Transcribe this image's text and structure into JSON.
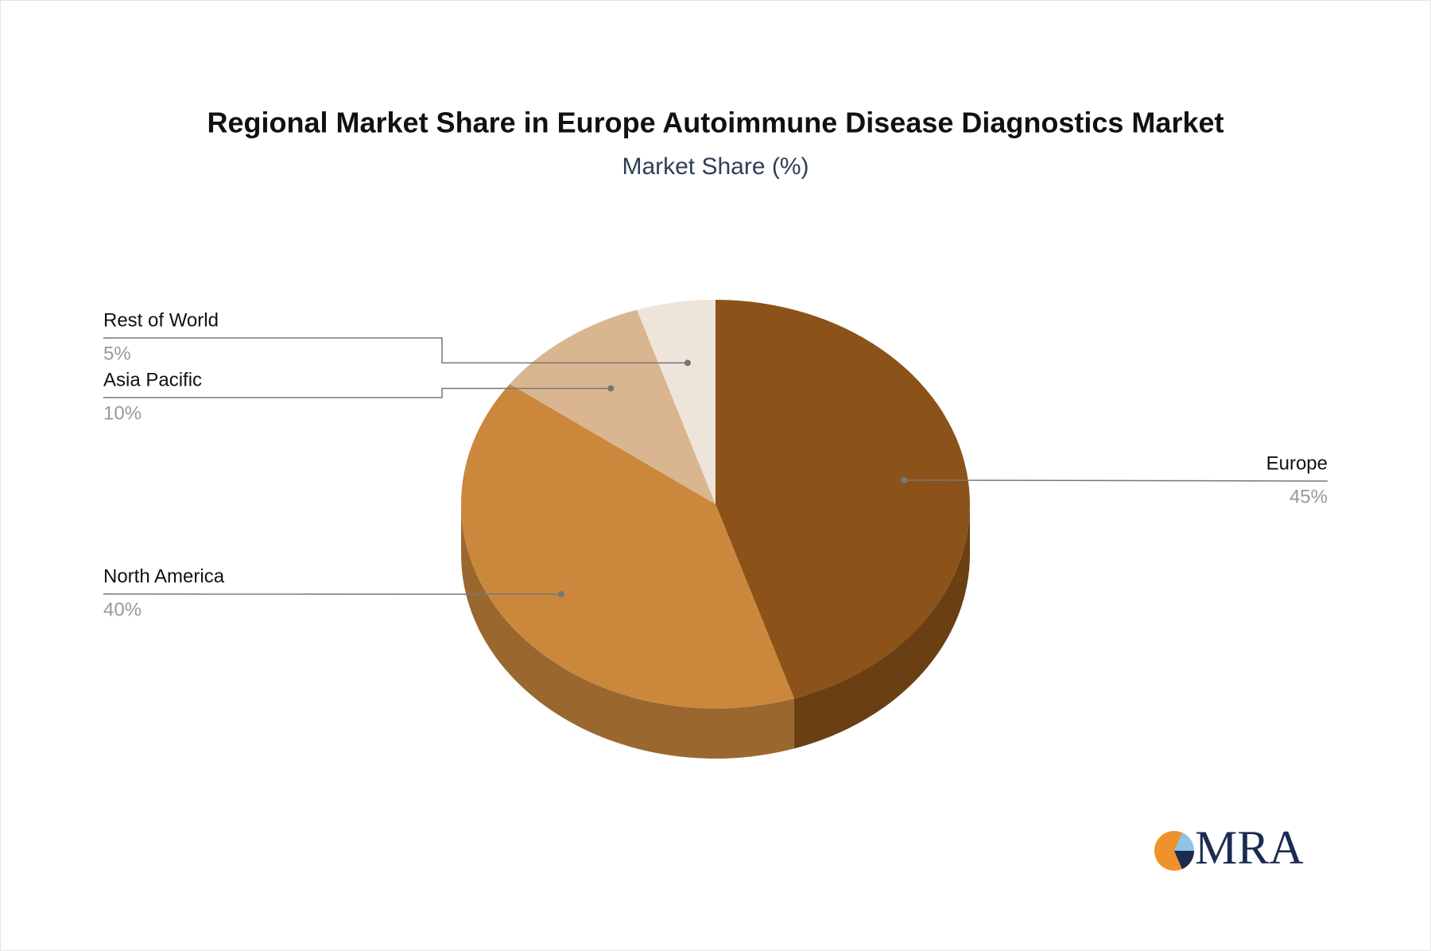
{
  "chart_data": {
    "type": "pie",
    "title": "Regional Market Share in Europe Autoimmune Disease Diagnostics Market",
    "subtitle": "Market Share (%)",
    "categories": [
      "Europe",
      "North America",
      "Asia Pacific",
      "Rest of World"
    ],
    "values": [
      45,
      40,
      10,
      5
    ],
    "value_labels": [
      "45%",
      "40%",
      "10%",
      "5%"
    ],
    "colors": [
      "#8b5319",
      "#cb883c",
      "#d9b68f",
      "#efe4da"
    ]
  },
  "logo": {
    "text": "MRA"
  }
}
